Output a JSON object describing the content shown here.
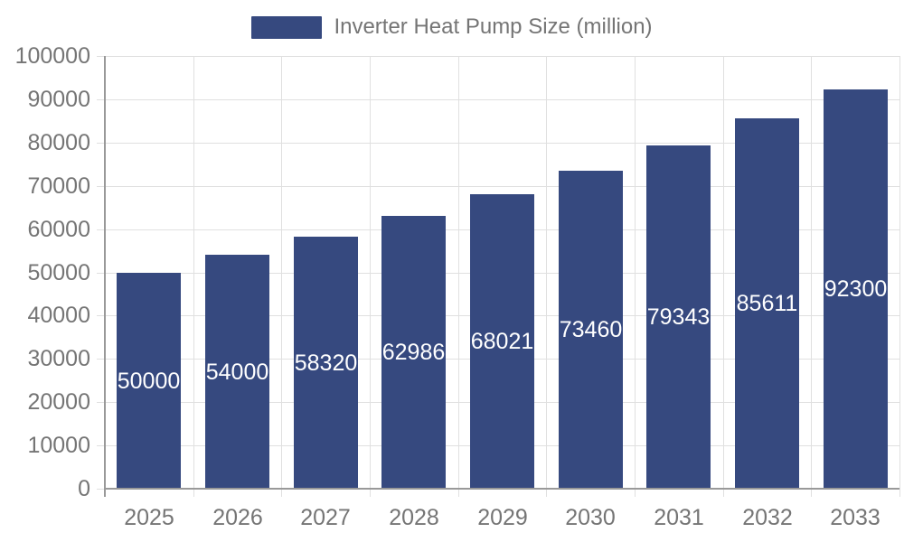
{
  "chart_data": {
    "type": "bar",
    "title": "",
    "legend_label": "Inverter Heat Pump Size (million)",
    "legend_position": "top-center",
    "categories": [
      "2025",
      "2026",
      "2027",
      "2028",
      "2029",
      "2030",
      "2031",
      "2032",
      "2033"
    ],
    "values": [
      50000,
      54000,
      58320,
      62986,
      68021,
      73460,
      79343,
      85611,
      92300
    ],
    "value_labels": [
      "50000",
      "54000",
      "58320",
      "62986",
      "68021",
      "73460",
      "79343",
      "85611",
      "92300"
    ],
    "xlabel": "",
    "ylabel": "",
    "ylim": [
      0,
      100000
    ],
    "ytick_step": 10000,
    "yticks": [
      "0",
      "10000",
      "20000",
      "30000",
      "40000",
      "50000",
      "60000",
      "70000",
      "80000",
      "90000",
      "100000"
    ],
    "grid": true,
    "colors": {
      "bar": "#36497F",
      "axis_line": "#999999",
      "grid_line": "#E0E0E0",
      "tick_label": "#757575",
      "legend_text": "#757575",
      "value_label": "#FFFFFF",
      "background": "#FFFFFF"
    }
  }
}
